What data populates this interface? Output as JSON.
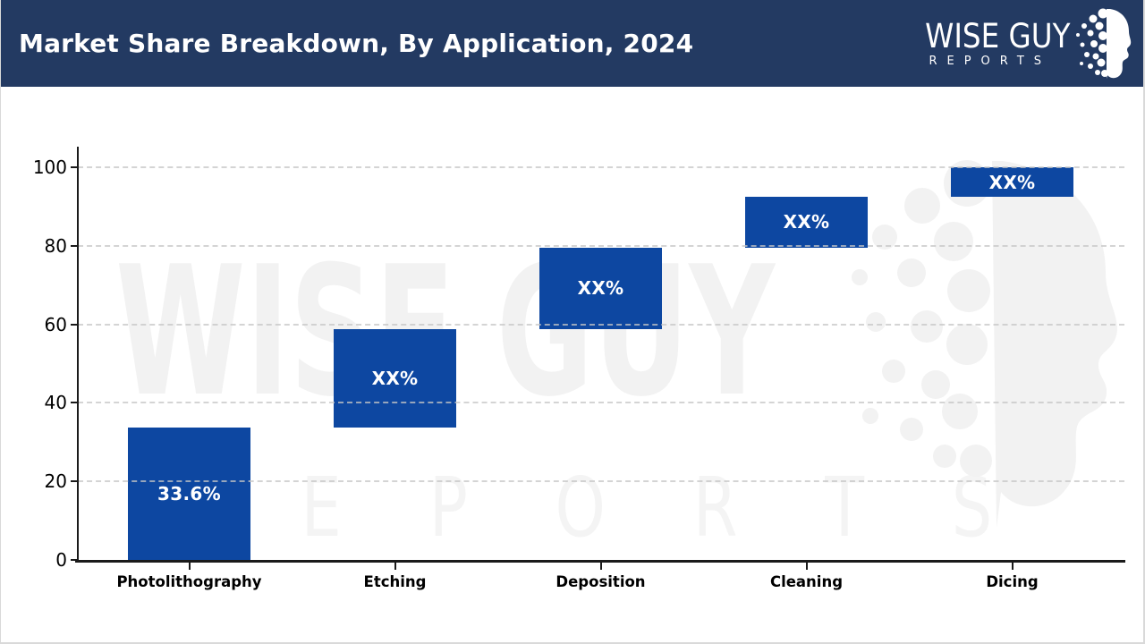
{
  "header": {
    "title": "Market Share Breakdown, By Application, 2024",
    "bg_color": "#233a62",
    "logo": {
      "line1": "WISE GUY",
      "line2": "REPORTS"
    }
  },
  "watermark": {
    "line1": "WISE GUY",
    "line2": "R E P O R T S"
  },
  "chart_data": {
    "type": "bar",
    "subtype": "waterfall",
    "title": "Market Share Breakdown, By Application, 2024",
    "categories": [
      "Photolithography",
      "Etching",
      "Deposition",
      "Cleaning",
      "Dicing"
    ],
    "segments": [
      {
        "category": "Photolithography",
        "start": 0,
        "end": 33.6,
        "label": "33.6%"
      },
      {
        "category": "Etching",
        "start": 33.6,
        "end": 58.8,
        "label": "XX%"
      },
      {
        "category": "Deposition",
        "start": 58.8,
        "end": 79.6,
        "label": "XX%"
      },
      {
        "category": "Cleaning",
        "start": 79.6,
        "end": 92.4,
        "label": "XX%"
      },
      {
        "category": "Dicing",
        "start": 92.4,
        "end": 100.0,
        "label": "XX%"
      }
    ],
    "yticks": [
      0,
      20,
      40,
      60,
      80,
      100
    ],
    "ylim": [
      0,
      105
    ],
    "xlabel": "",
    "ylabel": "",
    "bar_color": "#0d47a1",
    "label_color": "#ffffff",
    "grid": "horizontal-dashed",
    "legend_position": "none"
  }
}
